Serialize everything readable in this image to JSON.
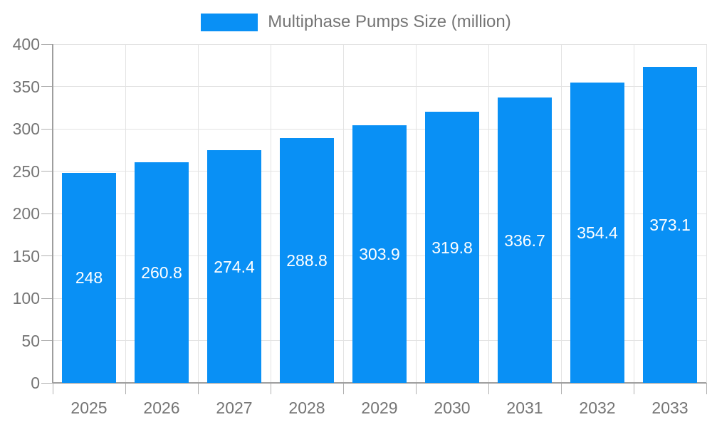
{
  "chart_data": {
    "type": "bar",
    "title": "Multiphase Pumps Size (million)",
    "categories": [
      "2025",
      "2026",
      "2027",
      "2028",
      "2029",
      "2030",
      "2031",
      "2032",
      "2033"
    ],
    "series": [
      {
        "name": "Multiphase Pumps Size (million)",
        "values": [
          248,
          260.8,
          274.4,
          288.8,
          303.9,
          319.8,
          336.7,
          354.4,
          373.1
        ]
      }
    ],
    "xlabel": "",
    "ylabel": "",
    "ylim": [
      0,
      400
    ],
    "yticks": [
      0,
      50,
      100,
      150,
      200,
      250,
      300,
      350,
      400
    ],
    "grid": true,
    "legend_position": "top",
    "bar_value_labels": "inside-center"
  },
  "legend": {
    "label": "Multiphase Pumps Size (million)"
  },
  "colors": {
    "bar": "#0990f5",
    "grid": "#e3e3e3",
    "axis": "#9e9e9e",
    "tick": "#b0b0b0",
    "text": "#757575",
    "bar_label": "#ffffff",
    "background": "#ffffff"
  }
}
